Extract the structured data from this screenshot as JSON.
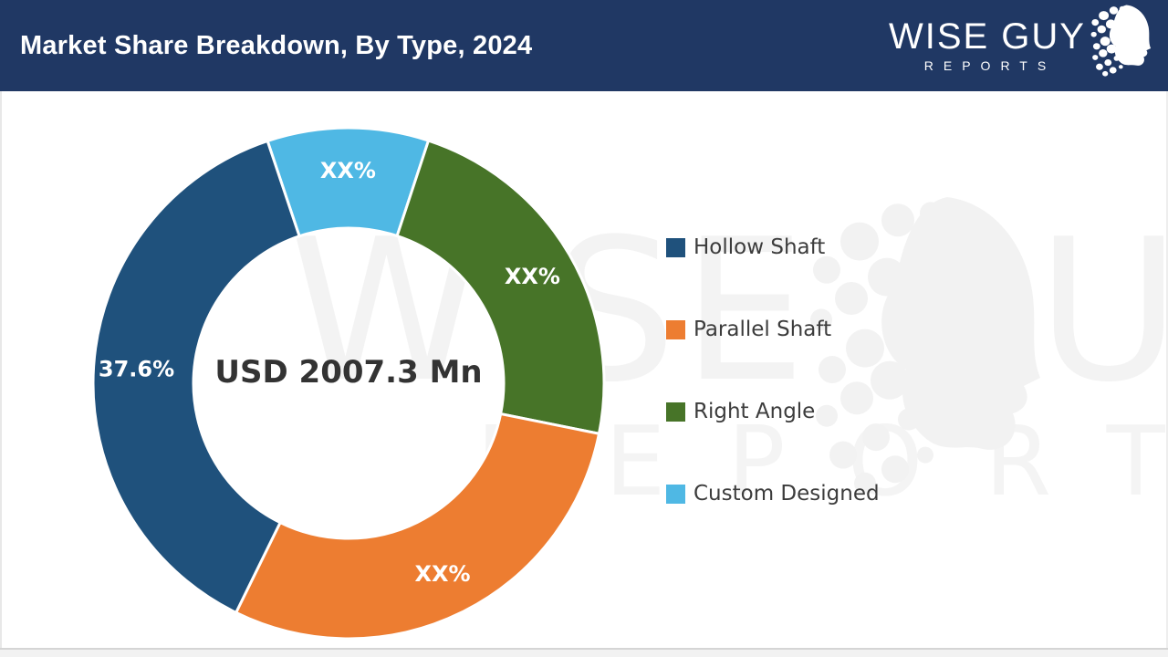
{
  "header": {
    "title": "Market Share Breakdown, By Type, 2024",
    "bg_color": "#203864",
    "logo": {
      "line1": "WISE GUY",
      "line2": "REPORTS"
    }
  },
  "watermark": {
    "line1": "WISE GUY",
    "line2": "REPORTS"
  },
  "chart_data": {
    "type": "pie",
    "donut": true,
    "title": "Market Share Breakdown, By Type, 2024",
    "center_label": "USD 2007.3 Mn",
    "start_angle_deg": -18.5,
    "direction": "clockwise",
    "inner_radius_ratio": 0.607,
    "legend_position": "right",
    "segments": [
      {
        "label": "Custom Designed",
        "display_value": "XX%",
        "percent_est": 10.2,
        "color": "#4FB8E4"
      },
      {
        "label": "Right Angle",
        "display_value": "XX%",
        "percent_est": 23.1,
        "color": "#477428"
      },
      {
        "label": "Parallel Shaft",
        "display_value": "XX%",
        "percent_est": 29.1,
        "color": "#ED7D31"
      },
      {
        "label": "Hollow Shaft",
        "display_value": "37.6%",
        "percent_est": 37.6,
        "color": "#1F517C"
      }
    ],
    "legend": [
      {
        "label": "Hollow Shaft",
        "color": "#1F517C"
      },
      {
        "label": "Parallel Shaft",
        "color": "#ED7D31"
      },
      {
        "label": "Right Angle",
        "color": "#477428"
      },
      {
        "label": "Custom Designed",
        "color": "#4FB8E4"
      }
    ]
  }
}
